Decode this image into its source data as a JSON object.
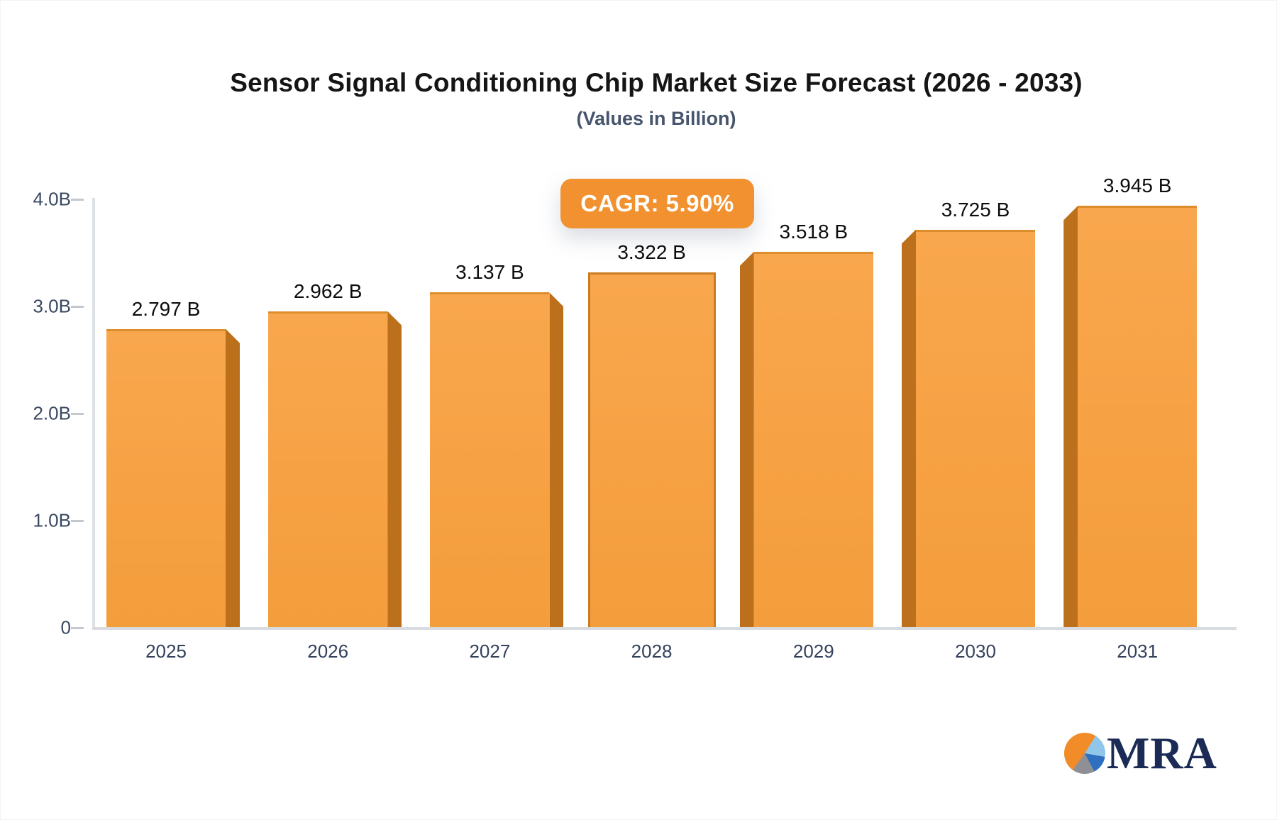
{
  "header": {
    "title": "Sensor Signal Conditioning Chip Market Size Forecast (2026 - 2033)",
    "subtitle": "(Values in Billion)"
  },
  "badge": {
    "label": "CAGR: 5.90%"
  },
  "logo": {
    "text": "MRA"
  },
  "colors": {
    "bar_front": "#f6a143",
    "bar_side": "#bc701b",
    "badge_bg": "#f2912f",
    "axis_text": "#3a4961",
    "logo_navy": "#1b2b55",
    "pie_orange": "#f28c28",
    "pie_lightblue": "#8fc6ea",
    "pie_blue": "#2e6fbf",
    "pie_gray": "#8e9095"
  },
  "chart_data": {
    "type": "bar",
    "title": "Sensor Signal Conditioning Chip Market Size Forecast (2026 - 2033)",
    "subtitle": "(Values in Billion)",
    "categories": [
      "2025",
      "2026",
      "2027",
      "2028",
      "2029",
      "2030",
      "2031"
    ],
    "values": [
      2.797,
      2.962,
      3.137,
      3.322,
      3.518,
      3.725,
      3.945
    ],
    "value_labels": [
      "2.797 B",
      "2.962 B",
      "3.137 B",
      "3.322 B",
      "3.518 B",
      "3.725 B",
      "3.945 B"
    ],
    "unit": "Billion",
    "cagr": "5.90%",
    "ylabel": "",
    "xlabel": "",
    "ylim": [
      0,
      4.0
    ],
    "yticks": [
      {
        "value": 0.0,
        "label": "0"
      },
      {
        "value": 1.0,
        "label": "1.0B"
      },
      {
        "value": 2.0,
        "label": "2.0B"
      },
      {
        "value": 3.0,
        "label": "3.0B"
      },
      {
        "value": 4.0,
        "label": "4.0B"
      }
    ],
    "grid": false,
    "legend": false,
    "bar_style": "3d-perspective-center"
  }
}
